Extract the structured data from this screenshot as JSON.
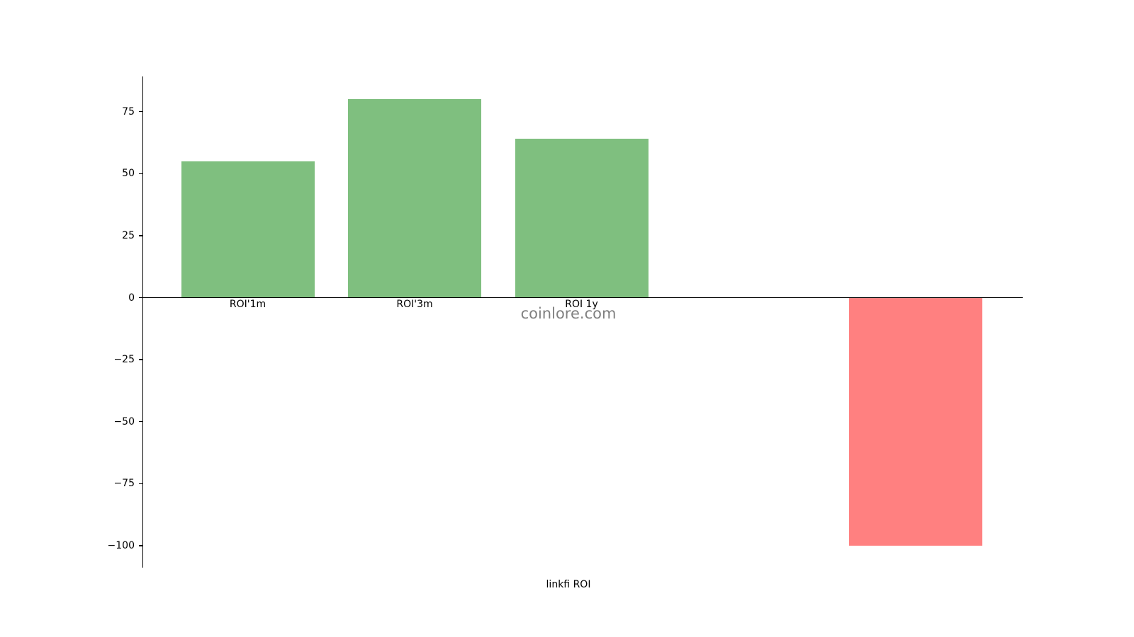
{
  "watermark": "coinlore.com",
  "chart_data": {
    "type": "bar",
    "title": "",
    "xlabel": "linkfi ROI",
    "ylabel": "",
    "categories": [
      "ROI'1m",
      "ROI'3m",
      "ROI 1y",
      "",
      ""
    ],
    "values": [
      55,
      80,
      64,
      0,
      -100
    ],
    "positive_color": "#7FBF7F",
    "negative_color": "#FF8080",
    "axis_color": "#000000",
    "watermark_color": "#808080",
    "yticks": [
      75,
      50,
      25,
      0,
      -25,
      -50,
      -75,
      -100
    ],
    "ylim": [
      -109,
      89
    ],
    "grid": false,
    "legend": "none",
    "baseline": 0
  }
}
